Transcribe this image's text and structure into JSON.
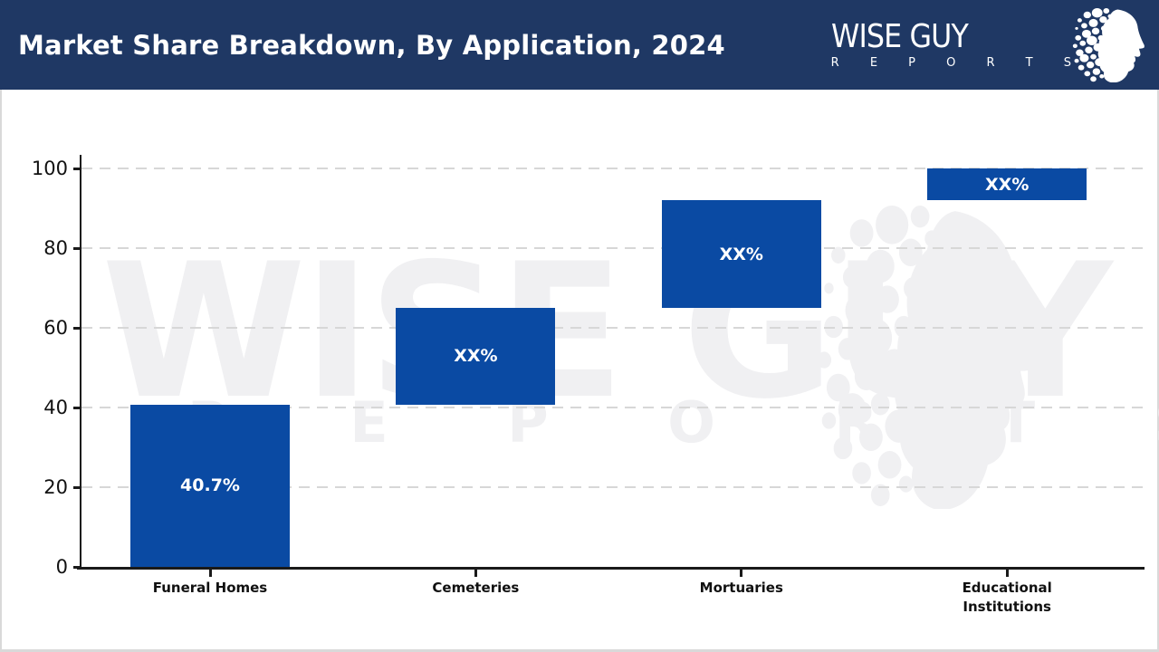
{
  "header": {
    "title": "Market Share Breakdown, By Application, 2024",
    "logo": {
      "line1": "WISE GUY",
      "line2": "R E P O R T S"
    }
  },
  "watermark": {
    "line1": "WISE GUY",
    "line2": "R E P O R T S"
  },
  "chart_data": {
    "type": "bar",
    "subtype": "floating-waterfall",
    "title": "Market Share Breakdown, By Application, 2024",
    "categories": [
      "Funeral Homes",
      "Cemeteries",
      "Mortuaries",
      "Educational\nInstitutions"
    ],
    "series": [
      {
        "name": "Market Share (%)",
        "ranges": [
          [
            0,
            40.7
          ],
          [
            40.7,
            65
          ],
          [
            65,
            92
          ],
          [
            92,
            100
          ]
        ],
        "bar_labels": [
          "40.7%",
          "XX%",
          "XX%",
          "XX%"
        ]
      }
    ],
    "ylim": [
      0,
      100
    ],
    "yticks": [
      0,
      20,
      40,
      60,
      80,
      100
    ],
    "xlabel": "",
    "ylabel": "",
    "grid": "horizontal-dashed",
    "legend": "none",
    "colors": {
      "bar": "#0a4aa3",
      "grid": "#d7d7d7",
      "axis": "#1a1a1a",
      "bar_label_text": "#ffffff",
      "header_bg": "#1f3864",
      "watermark": "#f0f0f2"
    }
  }
}
